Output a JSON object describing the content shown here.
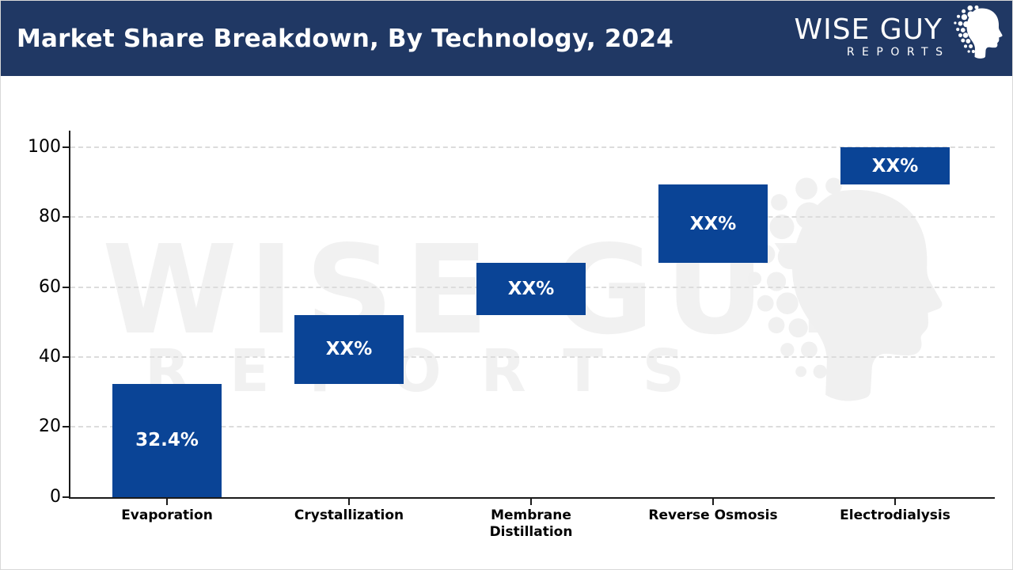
{
  "header": {
    "title": "Market Share Breakdown, By Technology, 2024",
    "bg_color": "#203864",
    "logo": {
      "line1": "WISE GUY",
      "line2": "REPORTS"
    }
  },
  "watermark": {
    "line1": "WISE GUY",
    "line2": "REPORTS"
  },
  "chart_data": {
    "type": "bar",
    "subtype": "waterfall",
    "title": "Market Share Breakdown, By Technology, 2024",
    "xlabel": "",
    "ylabel": "",
    "categories": [
      "Evaporation",
      "Crystallization",
      "Membrane Distillation",
      "Reverse Osmosis",
      "Electrodialysis"
    ],
    "bars": [
      {
        "category": "Evaporation",
        "category_lines": [
          "Evaporation"
        ],
        "start": 0,
        "end": 32.4,
        "label": "32.4%"
      },
      {
        "category": "Crystallization",
        "category_lines": [
          "Crystallization"
        ],
        "start": 32.4,
        "end": 52.0,
        "label": "XX%"
      },
      {
        "category": "Membrane Distillation",
        "category_lines": [
          "Membrane",
          "Distillation"
        ],
        "start": 52.0,
        "end": 67.0,
        "label": "XX%"
      },
      {
        "category": "Reverse Osmosis",
        "category_lines": [
          "Reverse Osmosis"
        ],
        "start": 67.0,
        "end": 89.3,
        "label": "XX%"
      },
      {
        "category": "Electrodialysis",
        "category_lines": [
          "Electrodialysis"
        ],
        "start": 89.3,
        "end": 100.0,
        "label": "XX%"
      }
    ],
    "y_ticks": [
      0,
      20,
      40,
      60,
      80,
      100
    ],
    "ylim": [
      0,
      105
    ],
    "bar_color": "#0a4496",
    "grid": true,
    "grid_style": "dashed",
    "legend": false
  }
}
